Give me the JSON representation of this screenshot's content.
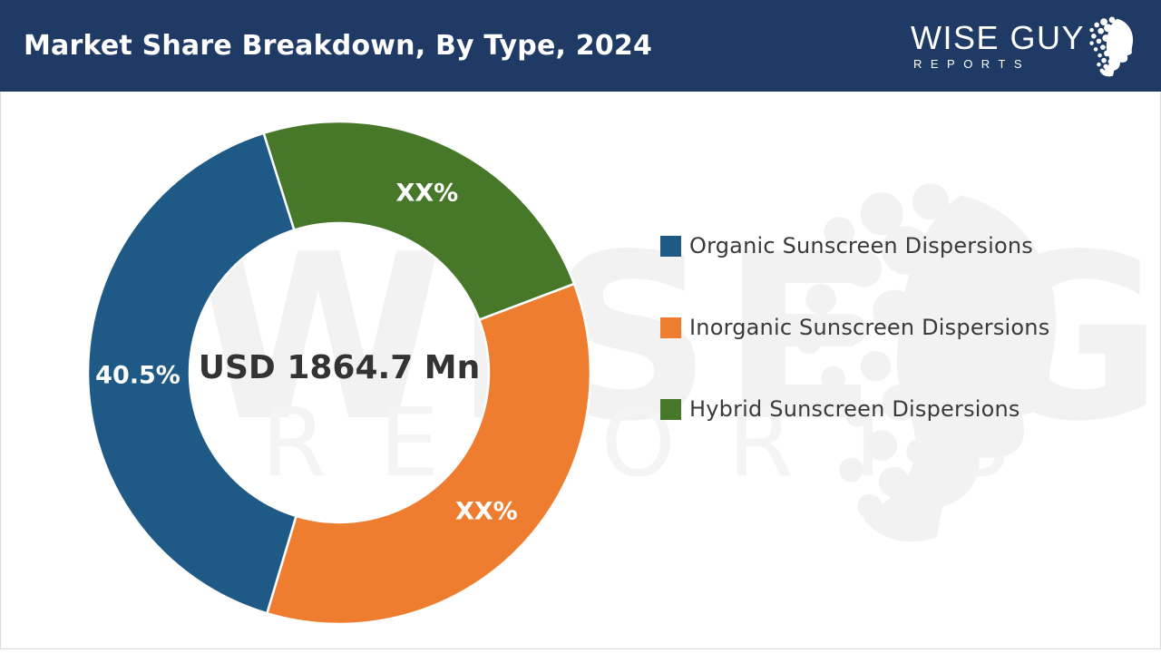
{
  "header": {
    "title": "Market Share Breakdown, By Type, 2024",
    "logo": {
      "line1": "WISE GUY",
      "line2": "REPORTS"
    }
  },
  "watermark": {
    "line1": "WISE GUY",
    "line2": "REPORTS"
  },
  "chart_data": {
    "type": "pie",
    "subtype": "donut",
    "title": "Market Share Breakdown, By Type, 2024",
    "center_label": "USD 1864.7 Mn",
    "legend_position": "right",
    "start_angle_deg": 107.5,
    "direction": "counterclockwise",
    "categories": [
      "Organic Sunscreen Dispersions",
      "Inorganic Sunscreen Dispersions",
      "Hybrid Sunscreen Dispersions"
    ],
    "slices": [
      {
        "name": "Organic Sunscreen Dispersions",
        "label": "40.5%",
        "value_pct": 40.5,
        "color": "#1F5A87"
      },
      {
        "name": "Inorganic Sunscreen Dispersions",
        "label": "XX%",
        "value_pct": 35.4,
        "color": "#EF7D2F"
      },
      {
        "name": "Hybrid Sunscreen Dispersions",
        "label": "XX%",
        "value_pct": 24.1,
        "color": "#47782A"
      }
    ]
  }
}
